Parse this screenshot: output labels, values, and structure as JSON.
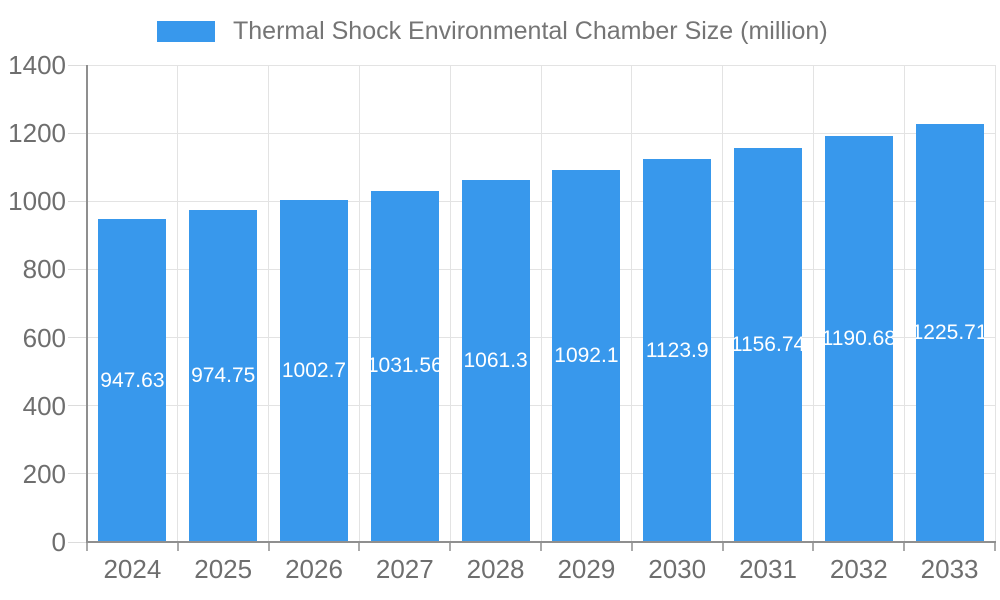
{
  "legend": {
    "label": "Thermal Shock Environmental Chamber Size (million)"
  },
  "chart_data": {
    "type": "bar",
    "title": "Thermal Shock Environmental Chamber Size (million)",
    "categories": [
      "2024",
      "2025",
      "2026",
      "2027",
      "2028",
      "2029",
      "2030",
      "2031",
      "2032",
      "2033"
    ],
    "values": [
      947.63,
      974.75,
      1002.7,
      1031.56,
      1061.3,
      1092.1,
      1123.9,
      1156.74,
      1190.68,
      1225.71
    ],
    "value_labels": [
      "947.63",
      "974.75",
      "1002.7",
      "1031.56",
      "1061.3",
      "1092.1",
      "1123.9",
      "1156.74",
      "1190.68",
      "1225.71"
    ],
    "series": [
      {
        "name": "Thermal Shock Environmental Chamber Size (million)",
        "color": "#3898ec"
      }
    ],
    "xlabel": "",
    "ylabel": "",
    "ylim": [
      0,
      1400
    ],
    "yticks": [
      0,
      200,
      400,
      600,
      800,
      1000,
      1200,
      1400
    ],
    "grid": true,
    "legend_position": "top"
  },
  "colors": {
    "bar": "#3898ec",
    "bar_label": "#ffffff",
    "legend_text": "#757575",
    "axis_label": "#6e6e6e",
    "gridline": "#e3e3e3",
    "tick_dash": "#dcdcdc",
    "x_tick": "#aaaaaa",
    "axis_line": "#8f8f8f",
    "background": "#ffffff"
  }
}
